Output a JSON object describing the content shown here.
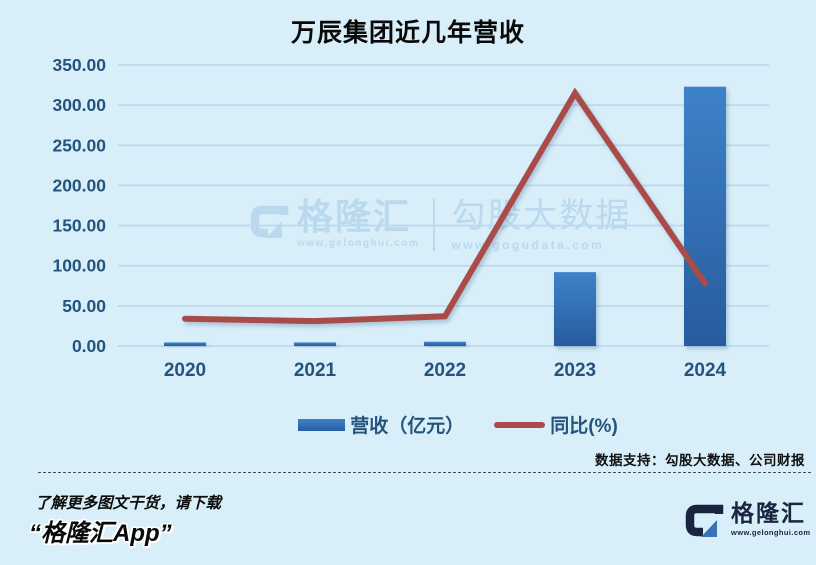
{
  "page": {
    "background_color": "#D8EFF9"
  },
  "chart_data": {
    "type": "bar+line",
    "title": "万辰集团近几年营收",
    "categories": [
      "2020",
      "2021",
      "2022",
      "2023",
      "2024"
    ],
    "series": [
      {
        "name": "营收（亿元）",
        "type": "bar",
        "color": "#2E6CB5",
        "values": [
          4.4,
          4.4,
          5.3,
          92,
          323
        ]
      },
      {
        "name": "同比(%)",
        "type": "line",
        "color": "#A94C4A",
        "values": [
          34,
          31,
          37,
          315,
          78
        ]
      }
    ],
    "ylim": [
      0,
      350
    ],
    "yticks": [
      350,
      300,
      250,
      200,
      150,
      100,
      50,
      0
    ],
    "ytick_labels": [
      "350.00",
      "300.00",
      "250.00",
      "200.00",
      "150.00",
      "100.00",
      "50.00",
      "0.00"
    ],
    "grid": true,
    "legend_position": "bottom"
  },
  "watermark": {
    "gelonghui_name": "格隆汇",
    "gelonghui_url": "www.gelonghui.com",
    "gogu_name": "勾股大数据",
    "gogu_url": "www.gogudata.com"
  },
  "footer": {
    "data_support": "数据支持：勾股大数据、公司财报",
    "promo_line1": "了解更多图文干货，请下载",
    "promo_line2": "“格隆汇App”",
    "brand_name": "格隆汇",
    "brand_url": "www.gelonghui.com"
  },
  "icons": {
    "brand_logo": "gelonghui-G-mark",
    "watermark_logo": "gelonghui-G-mark"
  },
  "colors": {
    "background": "#D8EFF9",
    "title_text": "#0A0A0A",
    "axis_text": "#26537E",
    "gridline": "#BCD9EE",
    "bar_top": "#3E82C8",
    "bar_bottom": "#275C9E",
    "line": "#A94C4A",
    "watermark": "#A3C8E6",
    "brand_navy": "#1A2440",
    "brand_blue": "#3A72B9"
  }
}
